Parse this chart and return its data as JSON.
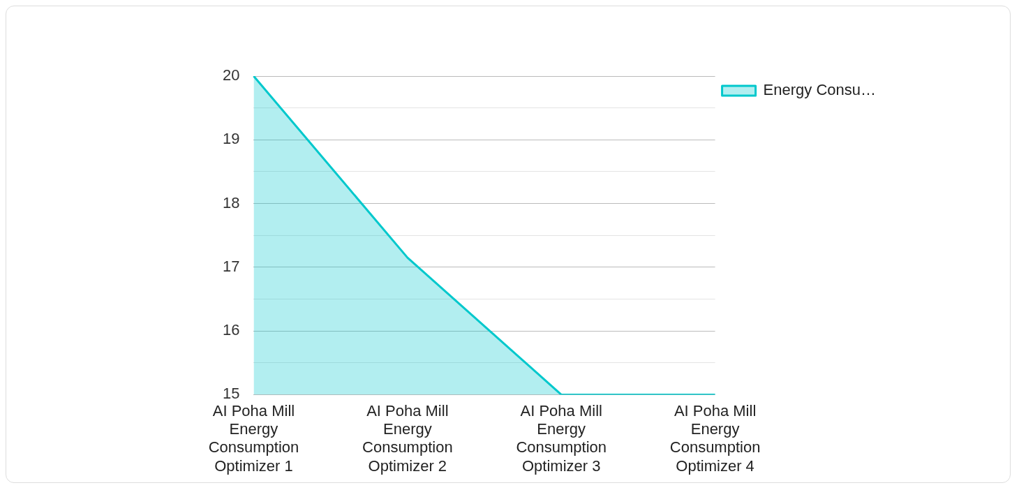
{
  "chart_data": {
    "type": "area",
    "categories": [
      "AI Poha Mill Energy Consumption Optimizer 1",
      "AI Poha Mill Energy Consumption Optimizer 2",
      "AI Poha Mill Energy Consumption Optimizer 3",
      "AI Poha Mill Energy Consumption Optimizer 4"
    ],
    "series": [
      {
        "name": "Energy Consu…",
        "color": "#00c8cc",
        "values": [
          20,
          17.15,
          15,
          15
        ]
      }
    ],
    "ylim": [
      15,
      20
    ],
    "yticks": [
      15,
      {
        "value": 15.5,
        "label": null
      },
      16,
      {
        "value": 16.5,
        "label": null
      },
      17,
      {
        "value": 17.5,
        "label": null
      },
      18,
      {
        "value": 18.5,
        "label": null
      },
      19,
      {
        "value": 19.5,
        "label": null
      },
      20
    ],
    "grid": "y",
    "legend": "top right"
  }
}
